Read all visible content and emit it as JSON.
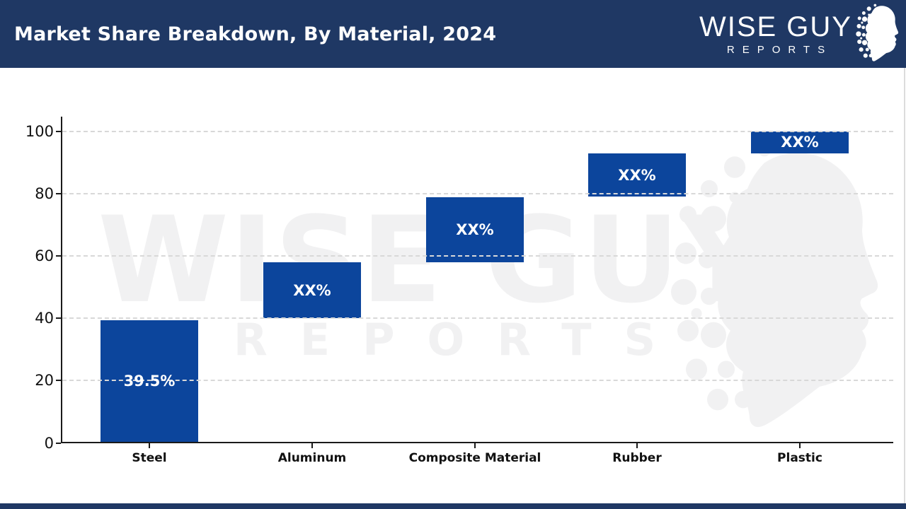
{
  "header": {
    "title": "Market Share Breakdown, By Material, 2024",
    "logo": {
      "line1": "WISE GUY",
      "line2": "REPORTS"
    }
  },
  "watermark": {
    "line1": "WISE GUY",
    "line2": "REPORTS"
  },
  "chart_data": {
    "type": "bar",
    "subtype": "waterfall",
    "title": "Market Share Breakdown, By Material, 2024",
    "categories": [
      "Steel",
      "Aluminum",
      "Composite Material",
      "Rubber",
      "Plastic"
    ],
    "segments": [
      {
        "category": "Steel",
        "start": 0,
        "end": 39.5,
        "label": "39.5%"
      },
      {
        "category": "Aluminum",
        "start": 40,
        "end": 58,
        "label": "XX%"
      },
      {
        "category": "Composite Material",
        "start": 58,
        "end": 79,
        "label": "XX%"
      },
      {
        "category": "Rubber",
        "start": 79,
        "end": 93,
        "label": "XX%"
      },
      {
        "category": "Plastic",
        "start": 93,
        "end": 100,
        "label": "XX%"
      }
    ],
    "ylim": [
      0,
      100
    ],
    "yticks": [
      0,
      20,
      40,
      60,
      80,
      100
    ],
    "grid": "dashed-horizontal",
    "legend": "none",
    "xlabel": "",
    "ylabel": ""
  },
  "colors": {
    "header_bg": "#1F3864",
    "footer_bg": "#1F3864",
    "bar": "#0C459C",
    "bar_label": "#FFFFFF",
    "watermark": "#F1F1F2",
    "gridline": "#D8D8D8",
    "axis": "#1A1A1A",
    "text": "#111111",
    "background": "#FFFFFF"
  }
}
